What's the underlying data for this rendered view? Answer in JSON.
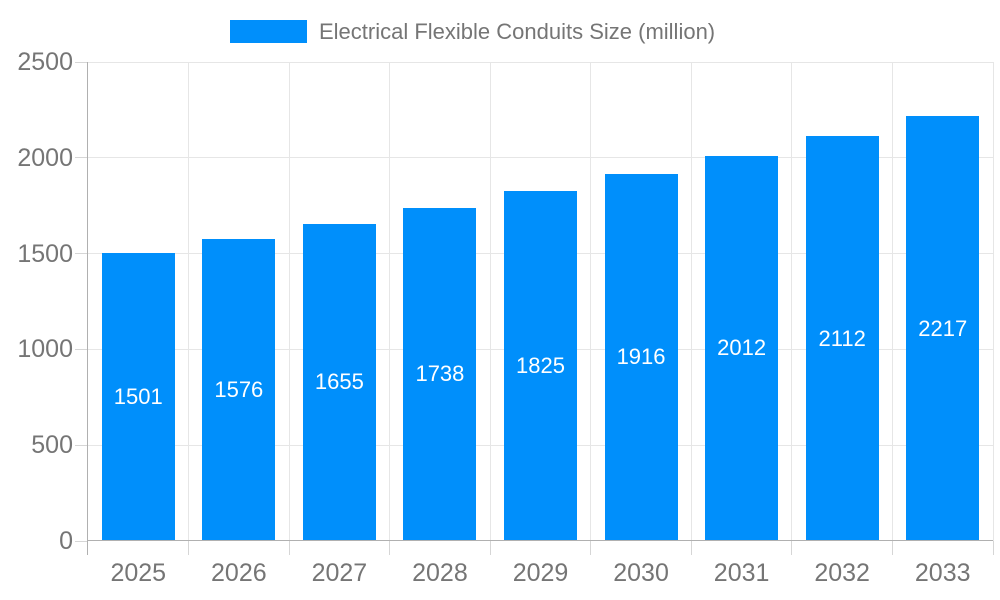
{
  "chart_data": {
    "type": "bar",
    "title": "Electrical Flexible Conduits Size (million)",
    "categories": [
      "2025",
      "2026",
      "2027",
      "2028",
      "2029",
      "2030",
      "2031",
      "2032",
      "2033"
    ],
    "values": [
      1501,
      1576,
      1655,
      1738,
      1825,
      1916,
      2012,
      2112,
      2217
    ],
    "xlabel": "",
    "ylabel": "",
    "ylim": [
      0,
      2500
    ],
    "yticks": [
      0,
      500,
      1000,
      1500,
      2000,
      2500
    ],
    "grid": true,
    "legend_position": "top",
    "bar_labels_shown": true,
    "colors": {
      "bar": "#008FFB",
      "bar_label_text": "#ffffff",
      "axis_text": "#757575",
      "gridline": "#e6e6e6",
      "tick": "#d6d6d6",
      "axis_line": "#b0b0b0",
      "background": "#ffffff"
    }
  }
}
